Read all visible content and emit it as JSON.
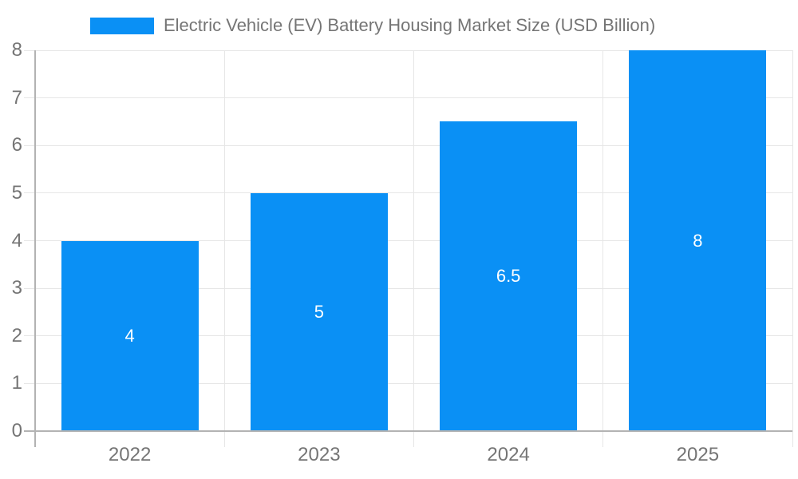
{
  "chart_data": {
    "type": "bar",
    "title": "Electric Vehicle (EV) Battery Housing Market Size (USD Billion)",
    "categories": [
      "2022",
      "2023",
      "2024",
      "2025"
    ],
    "series": [
      {
        "name": "Electric Vehicle (EV) Battery Housing Market Size (USD Billion)",
        "values": [
          4,
          5,
          6.5,
          8
        ]
      }
    ],
    "value_labels": [
      "4",
      "5",
      "6.5",
      "8"
    ],
    "xlabel": "",
    "ylabel": "",
    "ylim": [
      0,
      8
    ],
    "y_ticks": [
      0,
      1,
      2,
      3,
      4,
      5,
      6,
      7,
      8
    ],
    "grid": true,
    "legend_position": "top",
    "colors": {
      "bar": "#0a90f5",
      "title_text": "#757575",
      "tick_text": "#757575",
      "grid": "#e6e6e6",
      "axis": "#b3b3b3",
      "value_label_text": "#ffffff",
      "background": "#ffffff"
    }
  }
}
